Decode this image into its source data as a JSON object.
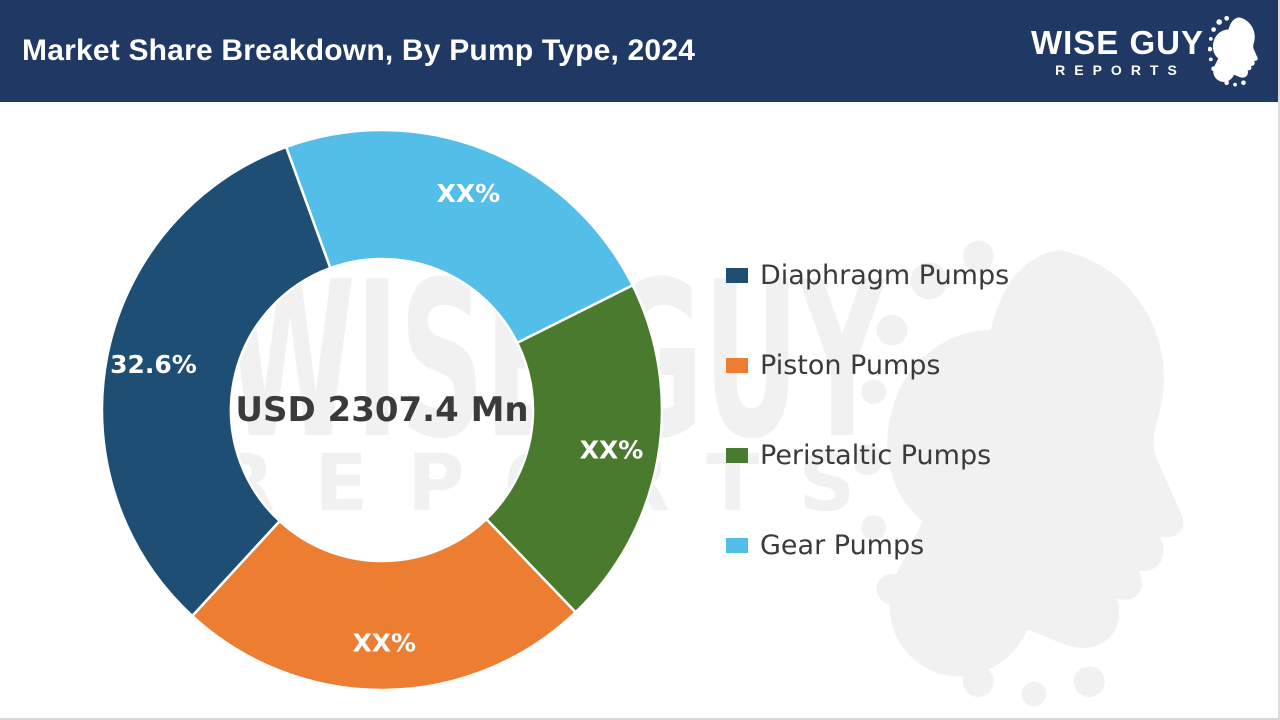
{
  "header": {
    "title": "Market Share Breakdown, By Pump Type, 2024",
    "bg_color": "#1f3864",
    "logo": {
      "line1": "WISE GUY",
      "line2": "REPORTS"
    }
  },
  "watermark": {
    "line1": "WISE GUY",
    "line2": "REPORTS"
  },
  "colors": {
    "header_bg": "#1f3864",
    "watermark": "#f1f1f2",
    "text": "#3a3a3a"
  },
  "chart_data": {
    "type": "pie",
    "subtype": "donut",
    "title": "Market Share Breakdown, By Pump Type, 2024",
    "center_label": "USD 2307.4 Mn",
    "start_angle_deg": 110,
    "direction": "counterclockwise",
    "inner_radius_ratio": 0.54,
    "legend_position": "right",
    "categories": [
      "Diaphragm Pumps",
      "Piston Pumps",
      "Peristaltic Pumps",
      "Gear Pumps"
    ],
    "values": [
      32.6,
      24.0,
      20.2,
      23.2
    ],
    "segments": [
      {
        "label": "Diaphragm Pumps",
        "value_pct": 32.6,
        "display_label": "32.6%",
        "color": "#1f4e74"
      },
      {
        "label": "Piston Pumps",
        "value_pct": 24.0,
        "display_label": "XX%",
        "color": "#ed7d31"
      },
      {
        "label": "Peristaltic Pumps",
        "value_pct": 20.2,
        "display_label": "XX%",
        "color": "#4a7a2e"
      },
      {
        "label": "Gear Pumps",
        "value_pct": 23.2,
        "display_label": "XX%",
        "color": "#53bfe8"
      }
    ]
  }
}
